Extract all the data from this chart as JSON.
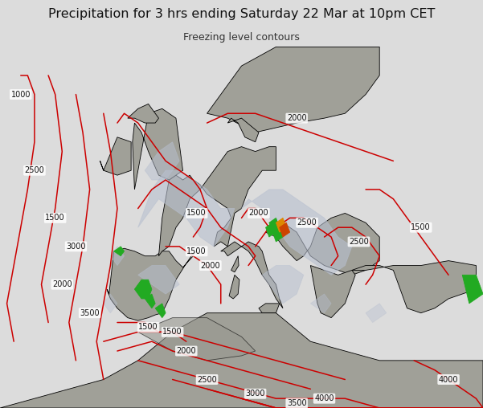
{
  "title": "Precipitation for 3 hrs ending Saturday 22 Mar at 10pm CET",
  "subtitle": "Freezing level contours",
  "title_fontsize": 11.5,
  "subtitle_fontsize": 9,
  "fig_width": 6.01,
  "fig_height": 5.08,
  "dpi": 100,
  "title_bg_color": "#e8e8e8",
  "map_bg_color": "#c8d0e0",
  "land_color": "#a0a098",
  "contour_color": "#cc0000",
  "border_color": "#000000",
  "precip_color": "#b8c0d0",
  "green_color": "#22aa22",
  "orange_color": "#dd6600",
  "title_bar_color": "#dcdcdc",
  "label_bg": "#ffffff"
}
